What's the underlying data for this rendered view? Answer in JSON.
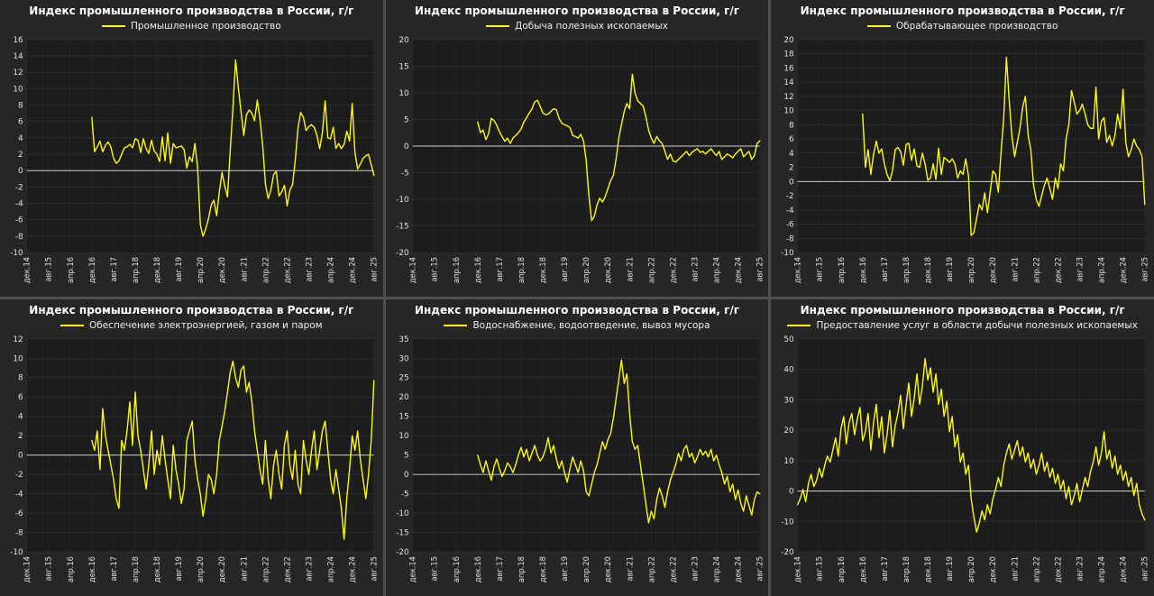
{
  "colors": {
    "page_bg": "#4f4f4f",
    "panel_bg": "#262626",
    "plot_bg": "#1c1c1c",
    "grid": "#3c3c3c",
    "grid_minor": "#2e2e2e",
    "zero_line": "#cfcfcf",
    "line": "#ffff00",
    "title_text": "#ffffff",
    "axis_text": "#e0e0e0"
  },
  "x_axis": {
    "tick_step": 8,
    "total_months": 128,
    "ticks": [
      "дек.14",
      "авг.15",
      "апр.16",
      "дек.16",
      "авг.17",
      "апр.18",
      "дек.18",
      "авг.19",
      "апр.20",
      "дек.20",
      "авг.21",
      "апр.22",
      "дек.22",
      "авг.23",
      "апр.24",
      "дек.24",
      "авг.25"
    ]
  },
  "chart_data": [
    {
      "type": "line",
      "title": "Индекс промышленного производства в России, г/г",
      "series_name": "Промышленное производство",
      "ylim": [
        -10,
        16
      ],
      "ystep": 2,
      "grid": true,
      "legend_position": "top",
      "start_month": 24,
      "values": [
        6.5,
        2.3,
        2.9,
        3.6,
        2.3,
        3.1,
        3.5,
        2.9,
        1.5,
        0.9,
        1.2,
        2.0,
        2.8,
        2.9,
        3.2,
        2.8,
        3.9,
        3.7,
        2.2,
        3.9,
        2.7,
        2.1,
        3.7,
        2.4,
        2.0,
        1.1,
        4.1,
        1.2,
        4.6,
        0.9,
        3.3,
        2.8,
        2.9,
        3.0,
        2.6,
        0.3,
        1.7,
        1.1,
        3.3,
        0.3,
        -6.6,
        -8.0,
        -7.1,
        -5.9,
        -4.2,
        -3.6,
        -5.5,
        -2.6,
        -0.2,
        -1.9,
        -3.2,
        2.3,
        7.6,
        13.5,
        10.1,
        7.2,
        4.3,
        6.8,
        7.4,
        7.0,
        6.1,
        8.6,
        6.3,
        3.0,
        -1.6,
        -3.4,
        -2.4,
        -0.5,
        -0.1,
        -3.1,
        -2.6,
        -1.8,
        -4.3,
        -2.4,
        -1.7,
        1.2,
        5.2,
        7.1,
        6.5,
        4.9,
        5.4,
        5.6,
        5.3,
        4.3,
        2.7,
        4.6,
        8.5,
        4.0,
        3.9,
        5.3,
        2.7,
        3.3,
        2.7,
        3.2,
        4.8,
        3.6,
        8.2,
        2.2,
        0.2,
        0.8,
        1.5,
        1.8,
        2.0,
        0.7,
        -0.6
      ]
    },
    {
      "type": "line",
      "title": "Индекс промышленного производства в России, г/г",
      "series_name": "Добыча полезных ископаемых",
      "ylim": [
        -20,
        20
      ],
      "ystep": 5,
      "grid": true,
      "legend_position": "top",
      "start_month": 24,
      "values": [
        4.5,
        2.5,
        3.0,
        1.2,
        2.3,
        5.2,
        4.8,
        3.9,
        2.7,
        1.8,
        0.9,
        1.5,
        0.5,
        1.5,
        2.0,
        2.5,
        3.2,
        4.5,
        5.3,
        6.2,
        7.0,
        8.3,
        8.6,
        7.5,
        6.2,
        5.9,
        6.0,
        6.5,
        7.0,
        6.8,
        5.2,
        4.3,
        4.0,
        3.8,
        3.5,
        2.0,
        1.8,
        1.5,
        2.2,
        1.0,
        -2.8,
        -9.3,
        -14.0,
        -13.2,
        -11.0,
        -9.8,
        -10.5,
        -9.5,
        -8.0,
        -6.5,
        -5.5,
        -2.5,
        1.5,
        4.0,
        6.5,
        8.0,
        7.0,
        13.5,
        10.0,
        8.5,
        8.0,
        7.5,
        5.5,
        3.0,
        1.5,
        0.5,
        1.8,
        1.0,
        0.5,
        -1.0,
        -2.5,
        -1.5,
        -2.8,
        -3.0,
        -2.5,
        -2.0,
        -1.5,
        -1.0,
        -1.8,
        -1.2,
        -0.8,
        -0.5,
        -1.2,
        -1.0,
        -1.5,
        -1.0,
        -0.5,
        -1.2,
        -1.8,
        -1.0,
        -2.5,
        -2.0,
        -1.5,
        -1.8,
        -2.2,
        -1.5,
        -1.0,
        -0.5,
        -2.0,
        -1.5,
        -1.0,
        -2.5,
        -1.8,
        0.5,
        1.0
      ]
    },
    {
      "type": "line",
      "title": "Индекс промышленного производства в России, г/г",
      "series_name": "Обрабатывающее производство",
      "ylim": [
        -10,
        20
      ],
      "ystep": 2,
      "grid": true,
      "legend_position": "top",
      "start_month": 24,
      "values": [
        9.5,
        2.0,
        4.5,
        1.0,
        3.8,
        5.7,
        4.0,
        4.6,
        2.5,
        1.0,
        0.1,
        1.5,
        4.5,
        4.8,
        4.2,
        2.3,
        5.2,
        5.4,
        3.0,
        4.6,
        2.2,
        2.0,
        4.0,
        2.5,
        0.2,
        0.5,
        2.5,
        0.3,
        4.7,
        1.0,
        3.4,
        3.1,
        2.7,
        3.2,
        2.5,
        0.5,
        1.5,
        1.0,
        3.2,
        0.8,
        -7.6,
        -7.2,
        -5.2,
        -3.2,
        -4.0,
        -1.6,
        -4.4,
        -1.5,
        1.5,
        1.0,
        -1.5,
        4.0,
        9.0,
        17.5,
        11.5,
        6.5,
        3.5,
        5.5,
        7.5,
        10.5,
        12.0,
        6.5,
        4.5,
        -0.5,
        -2.5,
        -3.5,
        -2.0,
        -0.5,
        0.5,
        -1.0,
        -2.5,
        0.5,
        -1.0,
        2.5,
        1.5,
        6.0,
        8.0,
        12.8,
        11.2,
        9.5,
        10.0,
        10.9,
        9.5,
        8.0,
        7.5,
        7.5,
        13.3,
        6.0,
        8.5,
        9.0,
        5.5,
        6.5,
        5.0,
        6.5,
        9.5,
        7.5,
        13.0,
        5.5,
        3.5,
        4.5,
        6.0,
        5.0,
        4.5,
        3.5,
        -3.2
      ]
    },
    {
      "type": "line",
      "title": "Индекс промышленного производства в России, г/г",
      "series_name": "Обеспечение электроэнергией, газом и паром",
      "ylim": [
        -10,
        12
      ],
      "ystep": 2,
      "grid": true,
      "legend_position": "top",
      "start_month": 24,
      "values": [
        1.5,
        0.5,
        2.5,
        -1.5,
        4.8,
        2.0,
        0.5,
        -1.0,
        -2.5,
        -4.5,
        -5.5,
        1.5,
        0.5,
        2.5,
        5.5,
        1.0,
        6.5,
        2.0,
        0.5,
        -1.5,
        -3.5,
        -1.0,
        2.5,
        -2.0,
        0.5,
        -1.0,
        2.0,
        -0.5,
        -2.5,
        -4.5,
        1.0,
        -1.5,
        -3.0,
        -5.0,
        -3.5,
        1.5,
        2.5,
        3.5,
        -0.5,
        -2.5,
        -4.0,
        -6.3,
        -4.5,
        -2.0,
        -2.5,
        -4.0,
        -2.0,
        1.5,
        3.0,
        4.5,
        6.5,
        8.5,
        9.7,
        8.0,
        7.0,
        8.8,
        9.2,
        6.5,
        7.5,
        5.5,
        2.5,
        0.5,
        -1.5,
        -3.0,
        1.5,
        -2.5,
        -4.5,
        -1.0,
        0.5,
        -2.0,
        -3.5,
        1.0,
        2.5,
        -1.0,
        -2.5,
        0.5,
        -3.0,
        -4.0,
        1.5,
        -0.5,
        -2.0,
        0.5,
        2.5,
        -1.5,
        0.5,
        2.5,
        3.5,
        0.5,
        -2.5,
        -4.0,
        -1.5,
        -3.5,
        -5.5,
        -8.7,
        -4.5,
        -1.5,
        2.0,
        0.5,
        2.5,
        -0.5,
        -2.5,
        -4.5,
        -2.0,
        1.5,
        7.7
      ]
    },
    {
      "type": "line",
      "title": "Индекс промышленного производства в России, г/г",
      "series_name": "Водоснабжение, водоотведение, вывоз мусора",
      "ylim": [
        -20,
        35
      ],
      "ystep": 5,
      "grid": true,
      "legend_position": "top",
      "start_month": 24,
      "values": [
        5.0,
        2.5,
        0.5,
        3.5,
        1.0,
        -1.5,
        2.0,
        4.0,
        1.5,
        -0.5,
        1.0,
        3.0,
        2.0,
        0.5,
        2.5,
        5.0,
        7.0,
        4.5,
        6.5,
        3.5,
        5.5,
        7.5,
        5.0,
        3.5,
        4.5,
        6.5,
        9.5,
        5.5,
        7.5,
        4.0,
        1.5,
        3.5,
        0.5,
        -2.0,
        1.5,
        4.5,
        2.5,
        0.5,
        3.5,
        1.0,
        -4.5,
        -5.5,
        -2.5,
        0.5,
        2.5,
        5.5,
        8.5,
        6.5,
        9.0,
        10.5,
        14.5,
        19.5,
        24.5,
        29.5,
        23.5,
        26.0,
        15.5,
        8.5,
        6.5,
        7.5,
        2.5,
        -2.5,
        -7.5,
        -12.5,
        -9.5,
        -11.5,
        -6.5,
        -3.5,
        -5.5,
        -8.5,
        -4.5,
        -1.5,
        0.5,
        2.5,
        5.5,
        3.5,
        6.5,
        7.5,
        4.5,
        5.5,
        3.0,
        4.5,
        6.5,
        5.0,
        6.0,
        4.5,
        6.5,
        3.5,
        5.0,
        2.5,
        0.5,
        -2.5,
        -0.5,
        -4.5,
        -2.5,
        -6.5,
        -4.0,
        -7.5,
        -9.5,
        -5.5,
        -8.0,
        -10.5,
        -6.5,
        -4.5,
        -5.0
      ]
    },
    {
      "type": "line",
      "title": "Индекс промышленного производства в России, г/г",
      "series_name": "Предоставление услуг в области добычи полезных ископаемых",
      "ylim": [
        -20,
        50
      ],
      "ystep": 10,
      "grid": true,
      "legend_position": "top",
      "start_month": 0,
      "values": [
        -4.5,
        -2.5,
        0.5,
        -3.5,
        2.5,
        5.5,
        1.5,
        3.5,
        7.5,
        4.5,
        8.5,
        11.5,
        9.5,
        13.5,
        17.5,
        11.5,
        20.5,
        24.5,
        15.5,
        22.5,
        25.5,
        18.5,
        23.5,
        27.5,
        16.5,
        19.5,
        25.5,
        13.5,
        22.5,
        28.5,
        17.5,
        24.5,
        12.5,
        18.5,
        26.5,
        14.5,
        21.5,
        25.5,
        31.5,
        20.5,
        28.5,
        35.5,
        24.5,
        30.5,
        38.5,
        28.5,
        34.5,
        43.5,
        36.5,
        40.5,
        32.5,
        38.5,
        28.5,
        33.5,
        24.5,
        29.5,
        19.5,
        24.5,
        14.5,
        18.5,
        9.5,
        12.5,
        5.5,
        8.5,
        -2.5,
        -8.5,
        -13.5,
        -10.5,
        -6.5,
        -9.5,
        -4.5,
        -7.5,
        -2.5,
        0.5,
        4.5,
        1.5,
        8.5,
        12.5,
        15.5,
        10.5,
        13.5,
        16.5,
        11.5,
        14.5,
        9.5,
        12.5,
        7.5,
        10.5,
        5.5,
        8.5,
        12.5,
        6.5,
        9.5,
        4.5,
        7.5,
        2.5,
        5.5,
        0.5,
        3.5,
        -2.5,
        1.5,
        -4.5,
        -1.5,
        2.5,
        -3.5,
        0.5,
        4.5,
        1.5,
        6.5,
        9.5,
        14.5,
        8.5,
        12.5,
        19.5,
        10.5,
        13.5,
        7.5,
        11.5,
        5.5,
        8.5,
        3.5,
        6.5,
        1.5,
        4.5,
        -1.5,
        2.5,
        -4.5,
        -7.5,
        -9.5
      ]
    }
  ]
}
